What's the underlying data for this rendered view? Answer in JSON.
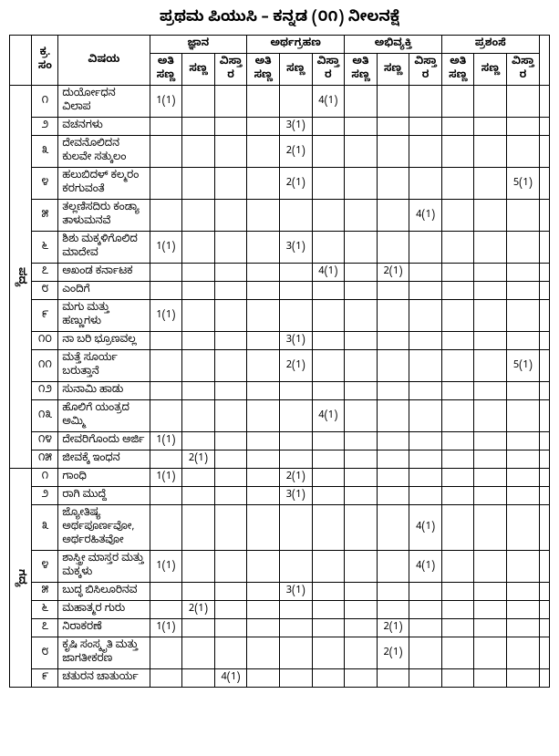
{
  "title": "ಪ್ರಥಮ ಪಿಯುಸಿ – ಕನ್ನಡ (೦೧) ನೀಲನಕ್ಷೆ",
  "headers": {
    "serial": "ಕ್ರ.ಸಂ",
    "subject": "ವಿಷಯ",
    "g1": "ಜ್ಞಾನ",
    "g2": "ಅರ್ಥಗ್ರಹಣ",
    "g3": "ಅಭಿವ್ಯಕ್ತಿ",
    "g4": "ಪ್ರಶಂಸೆ",
    "s1": "ಅತಿ ಸಣ್ಣ",
    "s2": "ಸಣ್ಣ",
    "s3": "ವಿಸ್ತಾರ"
  },
  "section1": {
    "label": "ಪದ್ಯ"
  },
  "section2": {
    "label": "ಗದ್ಯ"
  },
  "rows1": [
    {
      "n": "೧",
      "t": "ದುರ್ಯೋಧನ ವಿಲಾಪ",
      "k_as": "1(1)",
      "a_v": "4(1)"
    },
    {
      "n": "೨",
      "t": "ವಚನಗಳು",
      "a_s": "3(1)"
    },
    {
      "n": "೩",
      "t": "ದೇವನೊಲಿದನ ಕುಲವೇ ಸತ್ಕುಲಂ",
      "a_s": "2(1)"
    },
    {
      "n": "೪",
      "t": "ಹಲುಬಿದಳ್ ಕಲ್ಮರಂ ಕರಗುವಂತೆ",
      "a_s": "2(1)",
      "p_v": "5(1)"
    },
    {
      "n": "೫",
      "t": "ತಲ್ಲಣಿಸದಿರು ಕಂಡ್ಯಾ ತಾಳುಮನವೆ",
      "e_v": "4(1)"
    },
    {
      "n": "೬",
      "t": "ಶಿಶು ಮಕ್ಕಳಿಗೊಲಿದ ಮಾದೇವ",
      "k_as": "1(1)",
      "a_s": "3(1)"
    },
    {
      "n": "೭",
      "t": "ಅಖಂಡ ಕರ್ನಾಟಕ",
      "a_v": "4(1)",
      "e_s": "2(1)"
    },
    {
      "n": "೮",
      "t": "ಎಂದಿಗೆ"
    },
    {
      "n": "೯",
      "t": "ಮಗು ಮತ್ತು ಹಣ್ಣುಗಳು",
      "k_as": "1(1)"
    },
    {
      "n": "೧೦",
      "t": "ನಾ ಬರಿ ಭ್ರೂಣವಲ್ಲ",
      "a_s": "3(1)"
    },
    {
      "n": "೧೧",
      "t": "ಮತ್ತೆ ಸೂರ್ಯ ಬರುತ್ತಾನೆ",
      "a_s": "2(1)",
      "p_v": "5(1)"
    },
    {
      "n": "೧೨",
      "t": "ಸುನಾಮಿ ಹಾಡು"
    },
    {
      "n": "೧೩",
      "t": "ಹೊಲಿಗೆ ಯಂತ್ರದ ಅಮ್ಮಿ",
      "a_v": "4(1)"
    },
    {
      "n": "೧೪",
      "t": "ದೇವರಿಗೊಂದು ಅರ್ಜಿ",
      "k_as": "1(1)"
    },
    {
      "n": "೧೫",
      "t": "ಜೀವಕ್ಕೆ ಇಂಧನ",
      "k_s": "2(1)"
    }
  ],
  "rows2": [
    {
      "n": "೧",
      "t": "ಗಾಂಧಿ",
      "k_as": "1(1)",
      "a_s": "2(1)"
    },
    {
      "n": "೨",
      "t": "ರಾಗಿ ಮುದ್ದೆ",
      "a_s": "3(1)"
    },
    {
      "n": "೩",
      "t": "ಜ್ಯೋತಿಷ್ಯ ಅರ್ಥಪೂರ್ಣವೋ, ಅರ್ಥರಹಿತವೋ",
      "e_v": "4(1)"
    },
    {
      "n": "೪",
      "t": "ಶಾಸ್ತ್ರೀ ಮಾಸ್ತರ ಮತ್ತು ಮಕ್ಕಳು",
      "k_as": "1(1)",
      "e_v": "4(1)"
    },
    {
      "n": "೫",
      "t": "ಬುದ್ಧ ಬಿಸಿಲೂರಿನವ",
      "a_s": "3(1)"
    },
    {
      "n": "೬",
      "t": "ಮಹಾತ್ಮರ ಗುರು",
      "k_s": "2(1)"
    },
    {
      "n": "೭",
      "t": "ನಿರಾಕರಣೆ",
      "k_as": "1(1)",
      "e_s": "2(1)"
    },
    {
      "n": "೮",
      "t": "ಕೃಷಿ ಸಂಸ್ಕೃತಿ ಮತ್ತು ಜಾಗತೀಕರಣ",
      "e_s": "2(1)"
    },
    {
      "n": "೯",
      "t": "ಚತುರನ ಚಾತುರ್ಯ",
      "k_v": "4(1)"
    }
  ]
}
